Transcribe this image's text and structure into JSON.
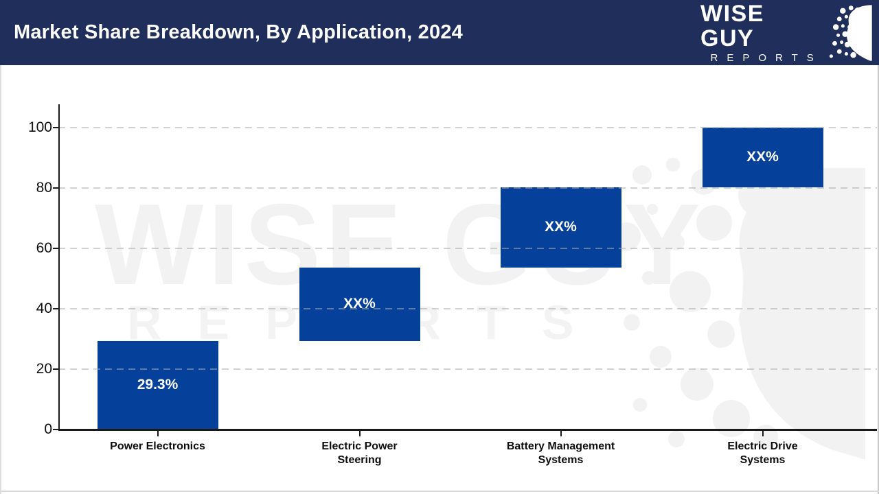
{
  "header": {
    "title": "Market Share Breakdown, By Application, 2024",
    "bg_color": "#1f2e5b",
    "logo": {
      "line1": "WISE GUY",
      "line2": "REPORTS"
    }
  },
  "watermark": {
    "line1": "WISE GUY",
    "line2": "REPORTS"
  },
  "chart_data": {
    "type": "bar",
    "subtype": "waterfall",
    "title": "Market Share Breakdown, By Application, 2024",
    "categories": [
      "Power Electronics",
      "Electric Power Steering",
      "Battery Management Systems",
      "Electric Drive Systems"
    ],
    "segments": [
      {
        "category_lines": [
          "Power Electronics"
        ],
        "start": 0,
        "end": 29.3,
        "label": "29.3%"
      },
      {
        "category_lines": [
          "Electric Power",
          "Steering"
        ],
        "start": 29.3,
        "end": 53.6,
        "label": "XX%"
      },
      {
        "category_lines": [
          "Battery Management",
          "Systems"
        ],
        "start": 53.6,
        "end": 80.2,
        "label": "XX%"
      },
      {
        "category_lines": [
          "Electric Drive",
          "Systems"
        ],
        "start": 80.2,
        "end": 100,
        "label": "XX%"
      }
    ],
    "yticks": [
      0,
      20,
      40,
      60,
      80,
      100
    ],
    "ylim": [
      0,
      100
    ],
    "xlabel": "",
    "ylabel": "",
    "grid": "horizontal-dashed",
    "legend": "none",
    "bar_color": "#05419b",
    "bar_label_color": "#ffffff",
    "axis_color": "#1a1a1a"
  }
}
